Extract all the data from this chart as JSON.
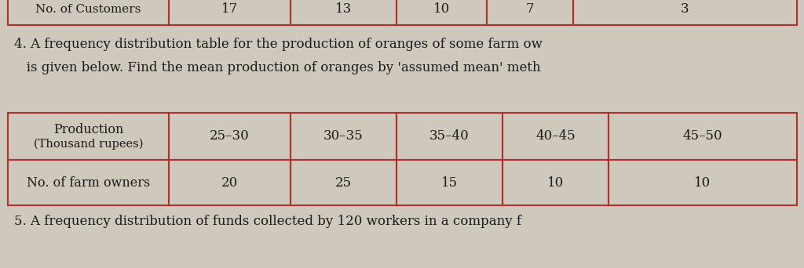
{
  "background_color": "#cfc8bc",
  "top_table": {
    "row1_label": "No. of Customers",
    "row1_values": [
      "17",
      "13",
      "10",
      "7",
      "3"
    ]
  },
  "question_text_line1": "4. A frequency distribution table for the production of oranges of some farm ow",
  "question_text_line2": "   is given below. Find the mean production of oranges by 'assumed mean' meth",
  "main_table": {
    "col_header_line1": "Production",
    "col_header_line2": "(Thousand rupees)",
    "col_ranges": [
      "25–30",
      "30–35",
      "35–40",
      "40–45",
      "45–50"
    ],
    "row2_label": "No. of farm owners",
    "row2_values": [
      "20",
      "25",
      "15",
      "10",
      "10"
    ]
  },
  "bottom_text": "5. A frequency distribution of funds collected by 120 workers in a company f",
  "table_border_color": "#b03030",
  "text_color": "#1a1a1a"
}
